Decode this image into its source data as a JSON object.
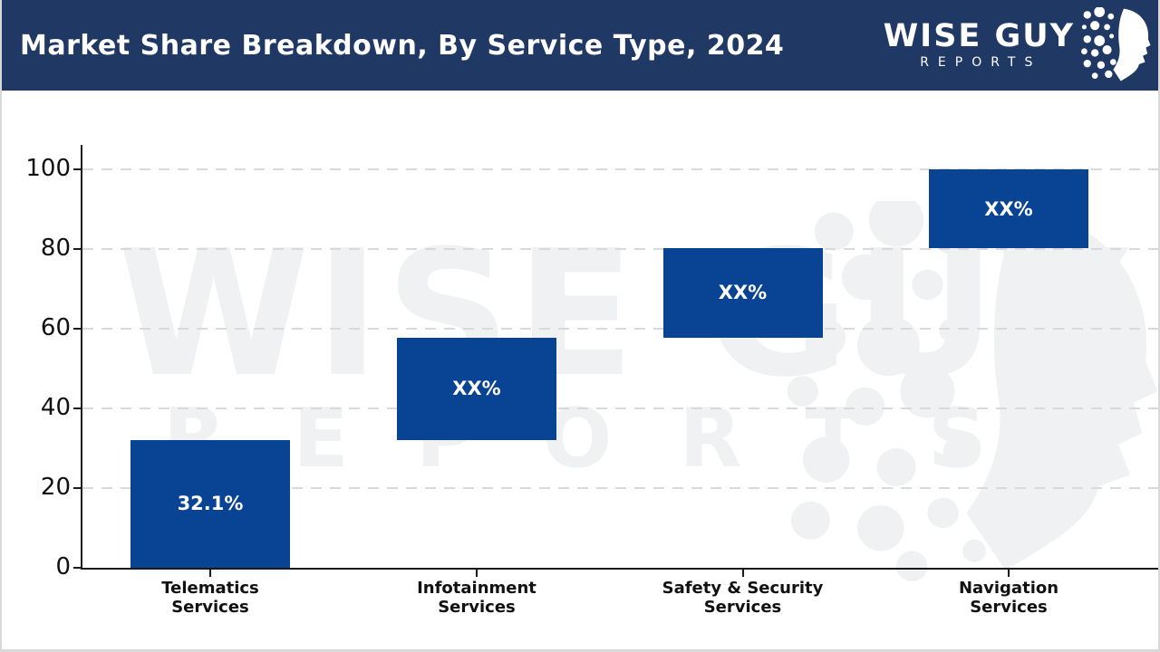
{
  "header": {
    "logo": {
      "title_top": "WISE GUY",
      "title_bottom": "REPORTS"
    }
  },
  "watermark": {
    "line1": "WISE GUY",
    "line2": "REPORTS"
  },
  "chart_data": {
    "type": "bar",
    "subtype": "waterfall",
    "title": "Market Share Breakdown, By Service Type, 2024",
    "categories": [
      [
        "Telematics",
        "Services"
      ],
      [
        "Infotainment",
        "Services"
      ],
      [
        "Safety & Security",
        "Services"
      ],
      [
        "Navigation",
        "Services"
      ]
    ],
    "bars": [
      {
        "start": 0,
        "end": 32.1,
        "label": "32.1%"
      },
      {
        "start": 32.1,
        "end": 57.8,
        "label": "XX%"
      },
      {
        "start": 57.8,
        "end": 80.2,
        "label": "XX%"
      },
      {
        "start": 80.2,
        "end": 100,
        "label": "XX%"
      }
    ],
    "ylim": [
      0,
      100
    ],
    "yticks": [
      0,
      20,
      40,
      60,
      80,
      100
    ],
    "grid": "horizontal-dashed",
    "legend": "none",
    "bar_color": "#084394",
    "xlabel": "",
    "ylabel": ""
  }
}
